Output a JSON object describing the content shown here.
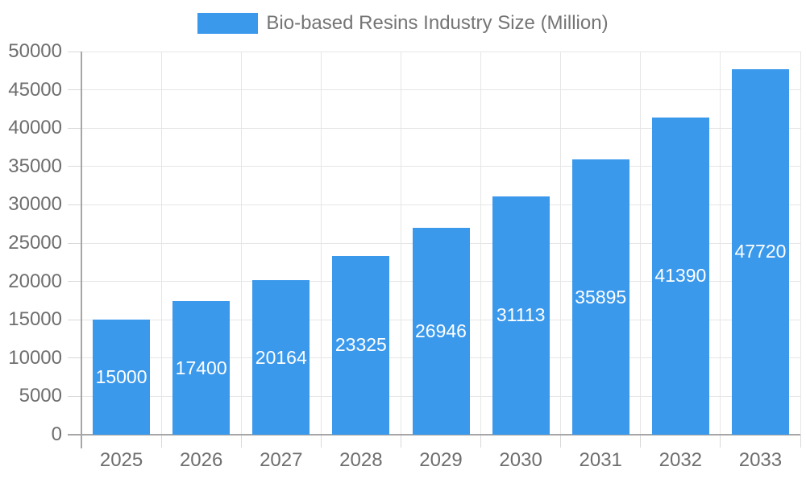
{
  "legend": {
    "label": "Bio-based Resins Industry Size (Million)"
  },
  "chart_data": {
    "type": "bar",
    "title": "Bio-based Resins Industry Size (Million)",
    "categories": [
      "2025",
      "2026",
      "2027",
      "2028",
      "2029",
      "2030",
      "2031",
      "2032",
      "2033"
    ],
    "values": [
      15000,
      17400,
      20164,
      23325,
      26946,
      31113,
      35895,
      41390,
      47720
    ],
    "xlabel": "",
    "ylabel": "",
    "ylim": [
      0,
      50000
    ],
    "ytick_step": 5000,
    "ytick_labels": [
      "0",
      "5000",
      "10000",
      "15000",
      "20000",
      "25000",
      "30000",
      "35000",
      "40000",
      "45000",
      "50000"
    ],
    "grid": true,
    "legend_position": "top-center",
    "value_label_position": "inside-center",
    "colors": {
      "bar": "#3B99EC",
      "grid_line": "#E6E6E6",
      "tick_line": "#D9D9D9",
      "axis_line": "#A6A6A6",
      "axis_text": "#6E6E6E",
      "legend_text": "#757575",
      "value_text": "#FFFFFF",
      "background": "#FFFFFF"
    }
  }
}
